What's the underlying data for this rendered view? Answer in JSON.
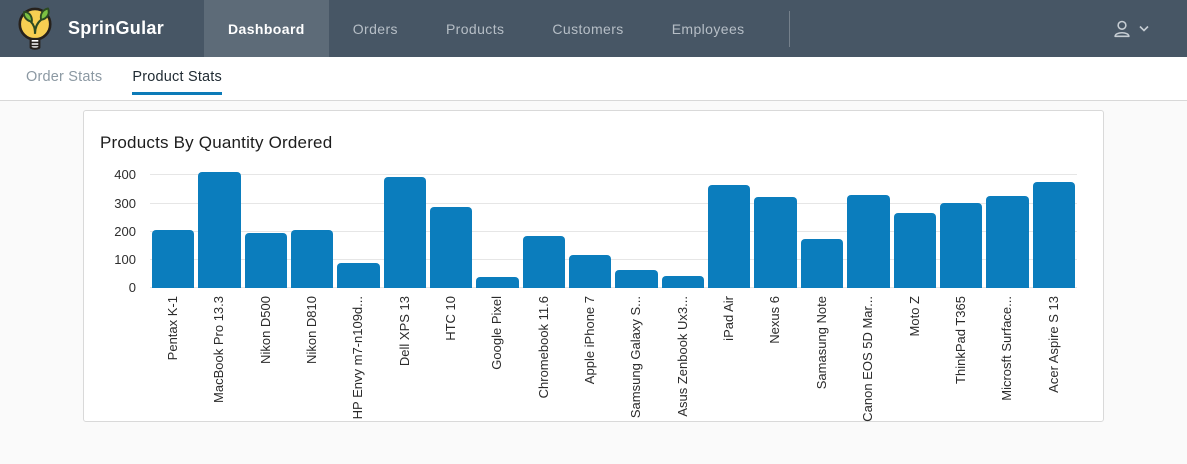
{
  "navbar": {
    "brand": "SprinGular",
    "logo_icon": "lightbulb-sprout-logo",
    "items": [
      {
        "label": "Dashboard",
        "active": true
      },
      {
        "label": "Orders",
        "active": false
      },
      {
        "label": "Products",
        "active": false
      },
      {
        "label": "Customers",
        "active": false
      },
      {
        "label": "Employees",
        "active": false
      }
    ],
    "user_menu": {
      "icon": "user-icon",
      "chevron": "chevron-down-icon"
    },
    "colors": {
      "background": "#475665",
      "active_item_background": "#5d6b78",
      "active_text": "#ffffff",
      "inactive_text": "#b6bec6"
    }
  },
  "tabs": {
    "items": [
      {
        "label": "Order Stats",
        "active": false
      },
      {
        "label": "Product Stats",
        "active": true
      }
    ],
    "accent_color": "#0c7bb8"
  },
  "chart_data": {
    "type": "bar",
    "title": "Products By Quantity Ordered",
    "categories": [
      "Pentax K-1",
      "MacBook Pro 13.3",
      "Nikon D500",
      "Nikon D810",
      "HP Envy m7-n109d...",
      "Dell XPS 13",
      "HTC 10",
      "Google Pixel",
      "Chromebook 11.6",
      "Apple iPhone 7",
      "Samsung Galaxy S...",
      "Asus Zenbook Ux3...",
      "iPad Air",
      "Nexus 6",
      "Samasung Note",
      "Canon EOS 5D Mar...",
      "Moto Z",
      "ThinkPad T365",
      "Microsft Surface...",
      "Acer Aspire S 13"
    ],
    "values": [
      205,
      413,
      196,
      205,
      88,
      393,
      287,
      40,
      185,
      118,
      65,
      44,
      365,
      324,
      175,
      331,
      265,
      302,
      327,
      378
    ],
    "xlabel": "",
    "ylabel": "",
    "ylim": [
      0,
      430
    ],
    "yticks": [
      0,
      100,
      200,
      300,
      400
    ],
    "grid": true,
    "legend": false,
    "bar_color": "#0b7dbd",
    "label_rotation": -90
  }
}
